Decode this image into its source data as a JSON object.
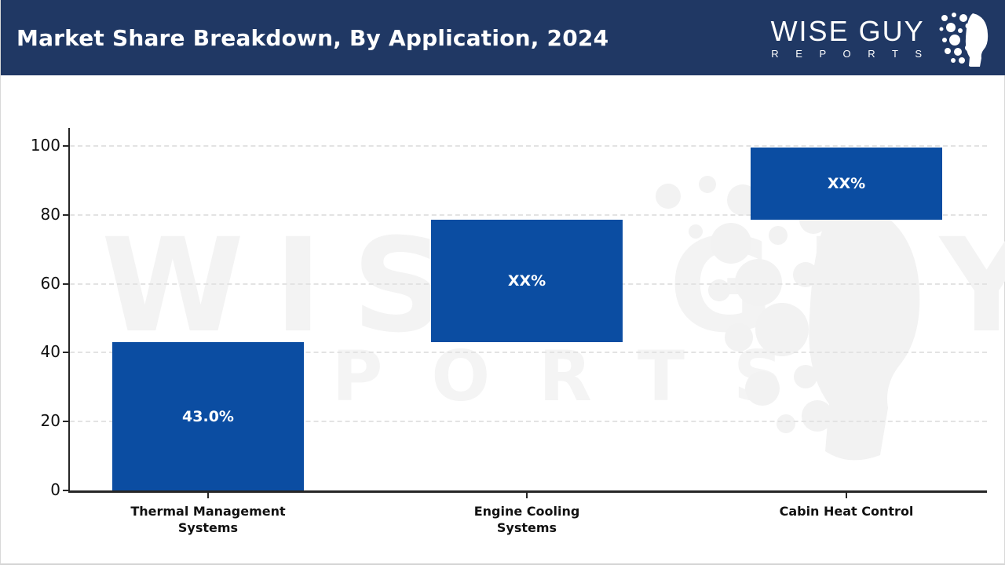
{
  "header": {
    "title": "Market Share Breakdown, By Application, 2024",
    "logo": {
      "line1": "WISE GUY",
      "line2": "R E P O R T S"
    }
  },
  "watermark": {
    "line1": "WISE GUY",
    "line2": "REPORTS"
  },
  "colors": {
    "header_bg": "#203864",
    "bar": "#0b4da2",
    "grid": "#e3e3e3",
    "axis": "#262626",
    "tick_text": "#111111",
    "bar_label_text": "#ffffff",
    "watermark": "#f3f3f3"
  },
  "chart_data": {
    "type": "bar",
    "subtype": "waterfall",
    "title": "Market Share Breakdown, By Application, 2024",
    "categories": [
      "Thermal Management\nSystems",
      "Engine Cooling\nSystems",
      "Cabin Heat Control"
    ],
    "bars": [
      {
        "category": "Thermal Management Systems",
        "start": 0,
        "end": 43,
        "label": "43.0%"
      },
      {
        "category": "Engine Cooling Systems",
        "start": 43,
        "end": 78.5,
        "label": "XX%"
      },
      {
        "category": "Cabin Heat Control",
        "start": 78.5,
        "end": 99.5,
        "label": "XX%"
      }
    ],
    "yticks": [
      0,
      20,
      40,
      60,
      80,
      100
    ],
    "ylim": [
      0,
      104.8
    ],
    "xlabel": "",
    "ylabel": "",
    "grid": "horizontal-dashed",
    "legend": "none"
  }
}
